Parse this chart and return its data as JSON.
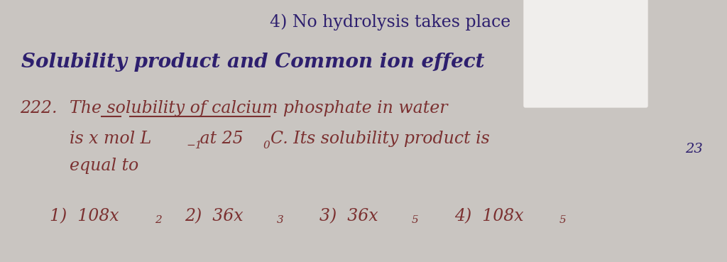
{
  "background_color": "#c9c5c1",
  "text_color": "#2d1f6e",
  "text_color_q": "#7b3030",
  "white_box_color": "#f0eeec",
  "figsize": [
    10.24,
    3.69
  ],
  "dpi": 100,
  "line1_text": "4) No hydrolysis takes place",
  "heading_text": "Solubility product and Common ion effect",
  "q_num_text": "222.",
  "q_body1": "The solubility of calcium phosphate in water",
  "q_body2_parts": [
    "is x mol L",
    "−1",
    " at 25",
    "0",
    "C. Its solubility product is"
  ],
  "q_body3": "equal to",
  "side_num": "23",
  "opts": [
    "1)  108x",
    "2)  36x",
    "3)  36x",
    "4)  108x"
  ],
  "opt_sups": [
    "2",
    "3",
    "5",
    "5"
  ]
}
